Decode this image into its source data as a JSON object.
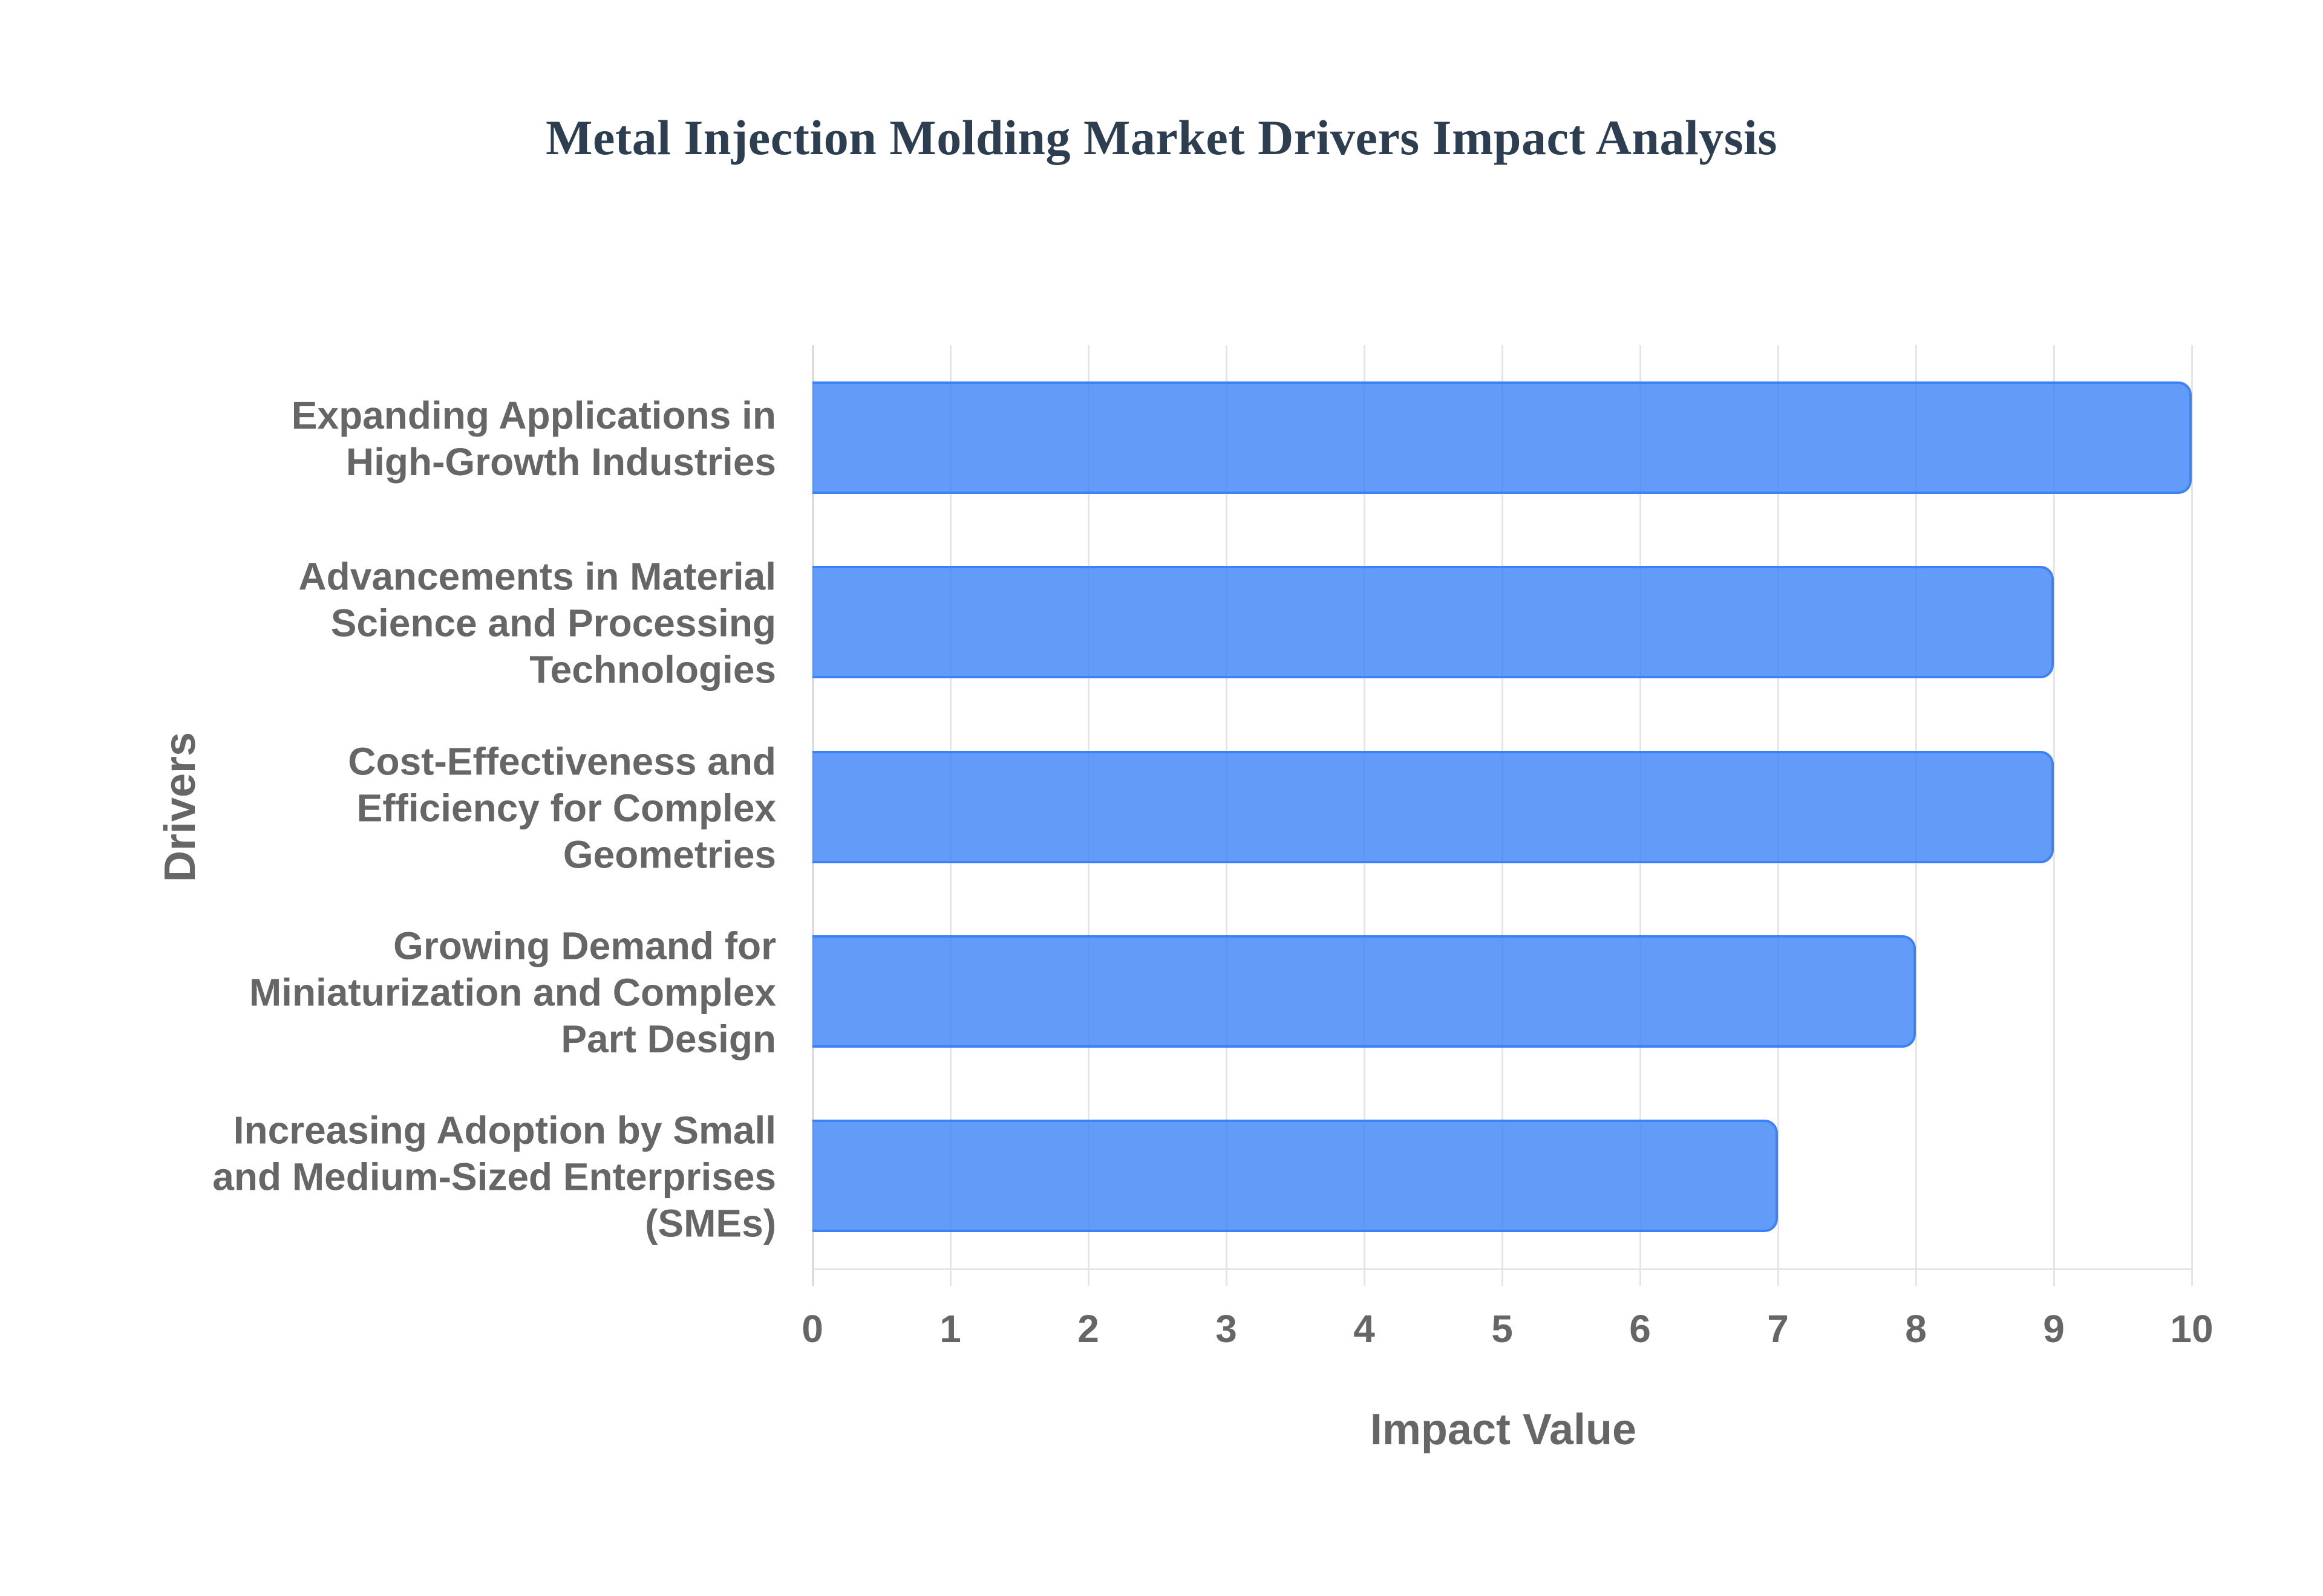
{
  "chart_data": {
    "type": "bar",
    "orientation": "horizontal",
    "title": "Metal Injection Molding Market Drivers Impact Analysis",
    "xlabel": "Impact Value",
    "ylabel": "Drivers",
    "categories": [
      "Expanding Applications in High-Growth Industries",
      "Advancements in Material Science and Processing Technologies",
      "Cost-Effectiveness and Efficiency for Complex Geometries",
      "Growing Demand for Miniaturization and Complex Part Design",
      "Increasing Adoption by Small and Medium-Sized Enterprises (SMEs)"
    ],
    "values": [
      10,
      9,
      9,
      8,
      7
    ],
    "xlim": [
      0,
      10
    ],
    "xticks": [
      "0",
      "1",
      "2",
      "3",
      "4",
      "5",
      "6",
      "7",
      "8",
      "9",
      "10"
    ],
    "grid": true,
    "legend": null,
    "colors": {
      "bar_fill": "#6199f5",
      "bar_border": "#3b82f6",
      "title": "#2c3e50",
      "axis_text": "#666666",
      "grid": "#e5e5e5"
    }
  },
  "labels": {
    "title": "Metal Injection Molding Market Drivers Impact Analysis",
    "x_axis_title": "Impact Value",
    "y_axis_title": "Drivers",
    "y_ticks": [
      "Expanding Applications in\nHigh-Growth Industries",
      "Advancements in Material\nScience and Processing\nTechnologies",
      "Cost-Effectiveness and\nEfficiency for Complex\nGeometries",
      "Growing Demand for\nMiniaturization and Complex\nPart Design",
      "Increasing Adoption by Small\nand Medium-Sized Enterprises\n(SMEs)"
    ],
    "x_ticks": [
      "0",
      "1",
      "2",
      "3",
      "4",
      "5",
      "6",
      "7",
      "8",
      "9",
      "10"
    ]
  }
}
